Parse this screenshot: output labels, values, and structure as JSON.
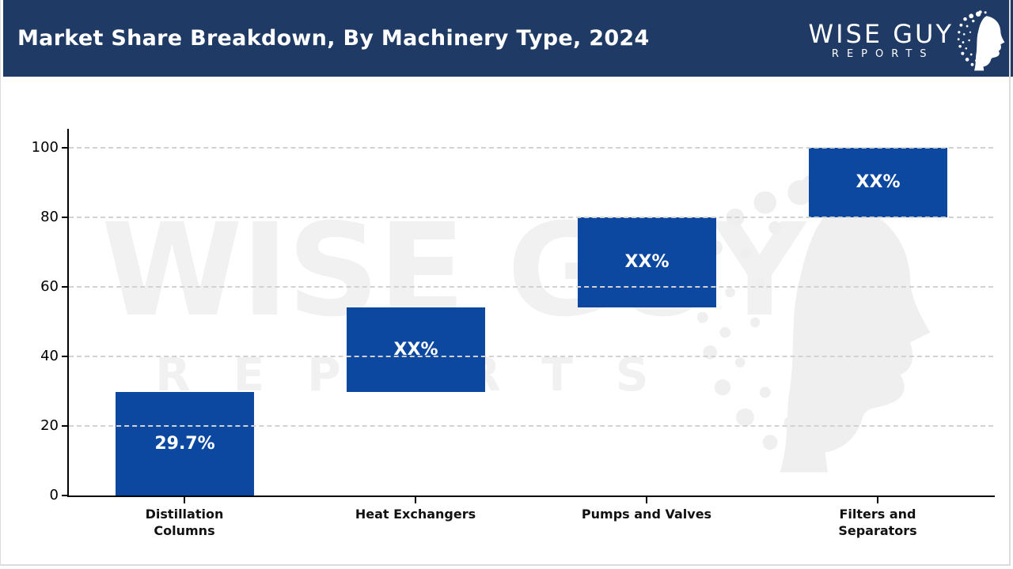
{
  "header": {
    "title": "Market Share Breakdown, By Machinery Type, 2024",
    "logo": {
      "line1": "WISE GUY",
      "line2": "REPORTS"
    }
  },
  "watermark": {
    "line1": "WISE GUY",
    "line2": "REPORTS"
  },
  "colors": {
    "header_bg": "#1f3a64",
    "bar": "#0c47a0",
    "bar_label": "#ffffff",
    "gridline": "#d2d2d2",
    "axis": "#000000",
    "watermark": "#f1f1f1"
  },
  "chart_data": {
    "type": "bar",
    "subtype": "waterfall",
    "title": "Market Share Breakdown, By Machinery Type, 2024",
    "categories": [
      "Distillation\nColumns",
      "Heat Exchangers",
      "Pumps and Valves",
      "Filters and\nSeparators"
    ],
    "segments": [
      {
        "category": "Distillation Columns",
        "start": 0,
        "end": 29.7,
        "label": "29.7%"
      },
      {
        "category": "Heat Exchangers",
        "start": 29.7,
        "end": 54,
        "label": "XX%"
      },
      {
        "category": "Pumps and Valves",
        "start": 54,
        "end": 80,
        "label": "XX%"
      },
      {
        "category": "Filters and Separators",
        "start": 80,
        "end": 100,
        "label": "XX%"
      }
    ],
    "xlabel": "",
    "ylabel": "",
    "ylim": [
      0,
      100
    ],
    "yticks": [
      0,
      20,
      40,
      60,
      80,
      100
    ],
    "grid": "horizontal-dashed",
    "legend": "none",
    "bar_width_frac": 0.6,
    "bar_color": "#0c47a0",
    "bar_label_color": "#ffffff"
  }
}
